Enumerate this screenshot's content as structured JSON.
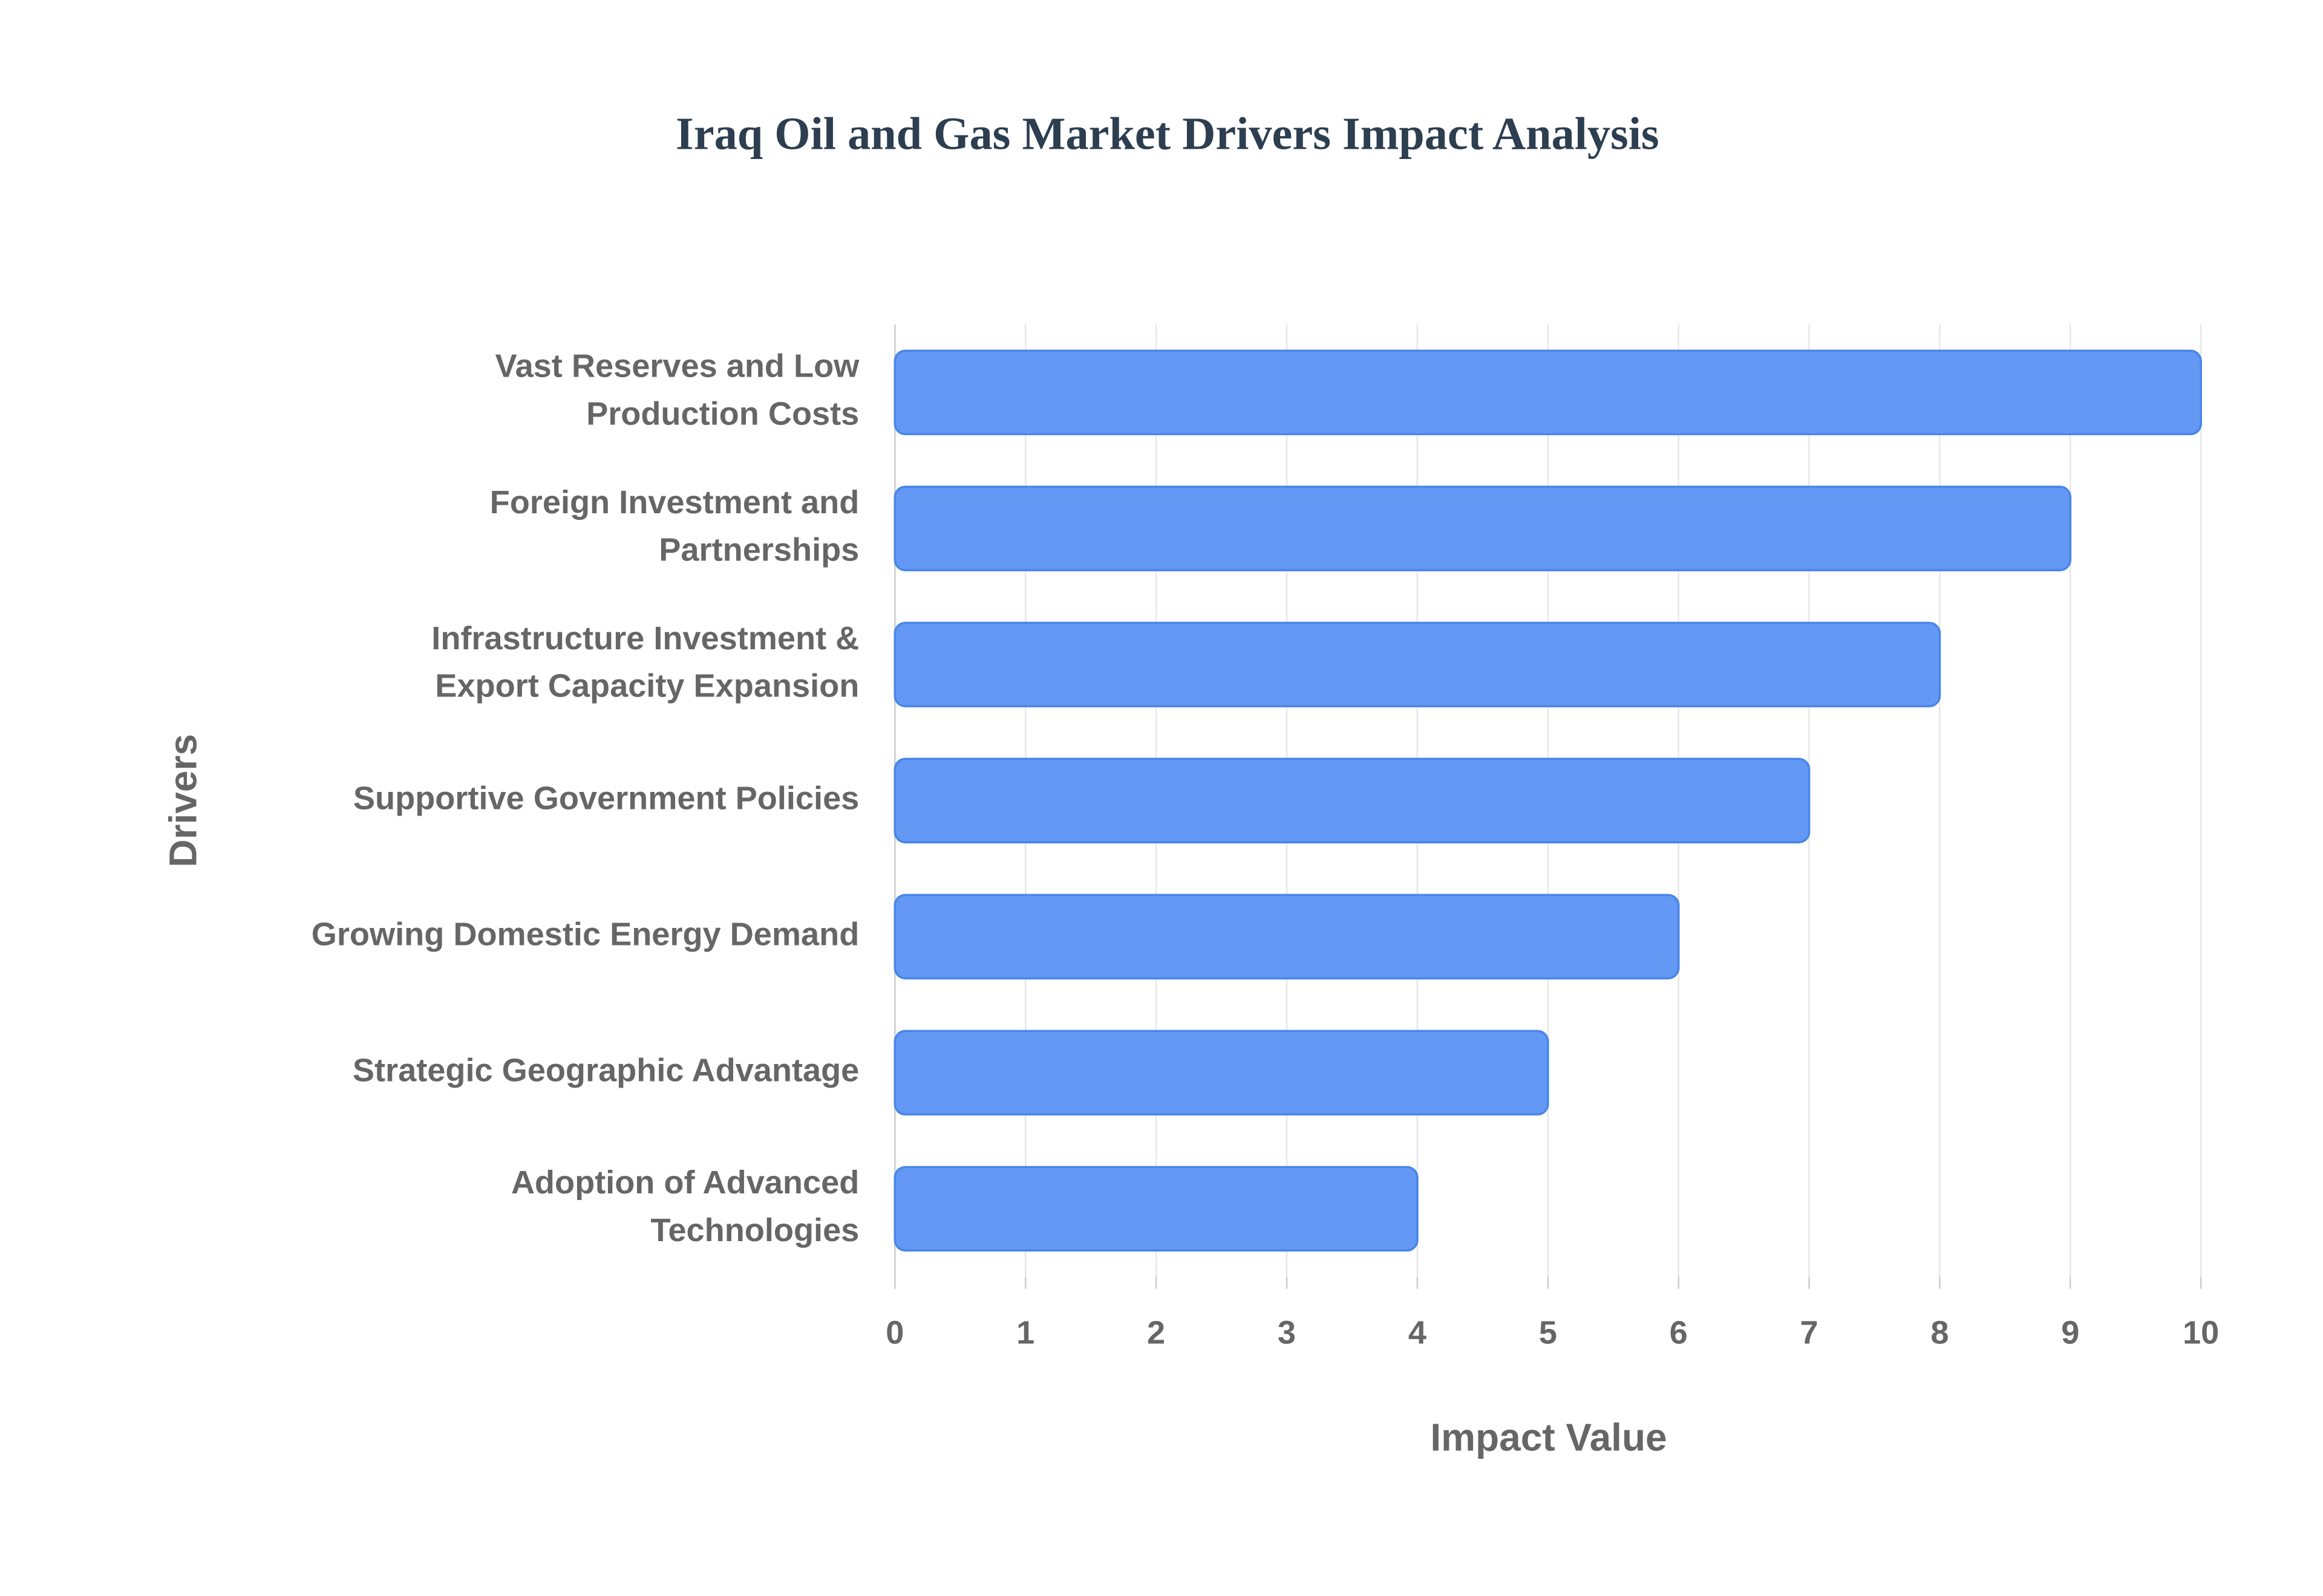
{
  "chart_data": {
    "type": "bar",
    "orientation": "horizontal",
    "title": "Iraq Oil and Gas Market Drivers Impact Analysis",
    "xlabel": "Impact Value",
    "ylabel": "Drivers",
    "categories": [
      "Vast Reserves and Low Production Costs",
      "Foreign Investment and Partnerships",
      "Infrastructure Investment & Export Capacity Expansion",
      "Supportive Government Policies",
      "Growing Domestic Energy Demand",
      "Strategic Geographic Advantage",
      "Adoption of Advanced Technologies"
    ],
    "values": [
      10,
      9,
      8,
      7,
      6,
      5,
      4
    ],
    "color": "#6399f5",
    "xlim": [
      0,
      10
    ],
    "xticks": [
      0,
      1,
      2,
      3,
      4,
      5,
      6,
      7,
      8,
      9,
      10
    ],
    "grid": true
  }
}
